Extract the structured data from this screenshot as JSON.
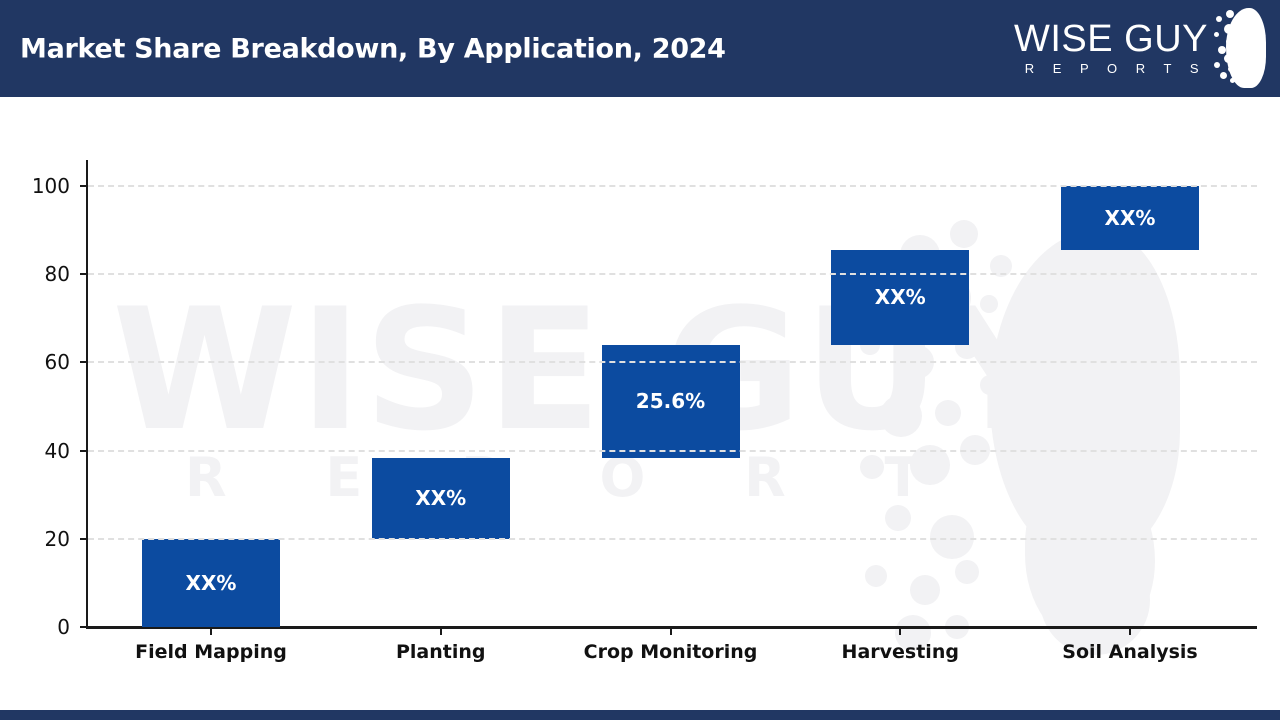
{
  "header": {
    "title": "Market Share Breakdown, By Application, 2024",
    "logo": {
      "name": "WISE GUY",
      "sub": "R E P O R T S"
    }
  },
  "watermark": {
    "line1": "WISE GUY",
    "line2": "R E P O R T S"
  },
  "chart_data": {
    "type": "bar",
    "subtype": "waterfall",
    "title": "Market Share Breakdown, By Application, 2024",
    "categories": [
      "Field Mapping",
      "Planting",
      "Crop Monitoring",
      "Harvesting",
      "Soil Analysis"
    ],
    "segments": [
      {
        "category": "Field Mapping",
        "start": 0,
        "end": 20.0,
        "delta": 20.0,
        "label": "XX%"
      },
      {
        "category": "Planting",
        "start": 20.0,
        "end": 38.4,
        "delta": 18.4,
        "label": "XX%"
      },
      {
        "category": "Crop Monitoring",
        "start": 38.4,
        "end": 64.0,
        "delta": 25.6,
        "label": "25.6%"
      },
      {
        "category": "Harvesting",
        "start": 64.0,
        "end": 85.6,
        "delta": 21.6,
        "label": "XX%"
      },
      {
        "category": "Soil Analysis",
        "start": 85.6,
        "end": 100.0,
        "delta": 14.4,
        "label": "XX%"
      }
    ],
    "xlabel": "",
    "ylabel": "",
    "yticks": [
      0,
      20,
      40,
      60,
      80,
      100
    ],
    "ylim": [
      0,
      106
    ],
    "grid": "horizontal-dashed",
    "legend": "none",
    "bar_color": "#0c4ba0",
    "bar_label_color": "#ffffff"
  },
  "colors": {
    "header_bg": "#213763",
    "footer_bg": "#213763",
    "bar": "#0c4ba0",
    "grid": "#e0e0e0",
    "axis": "#1a1a1a",
    "watermark": "#f2f2f4",
    "title_text": "#ffffff"
  }
}
